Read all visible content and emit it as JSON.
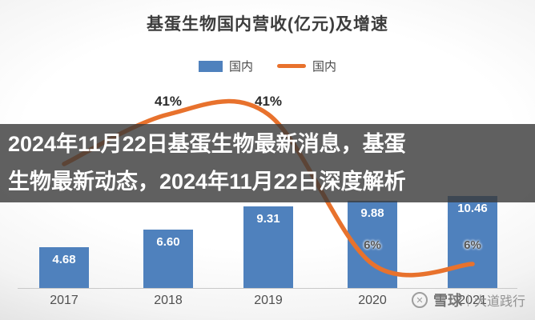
{
  "chart_data": {
    "type": "bar+line",
    "title": "基蛋生物国内营收(亿元)及增速",
    "categories": [
      "2017",
      "2018",
      "2019",
      "2020",
      "2021"
    ],
    "series": [
      {
        "name": "国内",
        "type": "bar",
        "color": "#4F81BD",
        "unit": "亿元",
        "values": [
          4.68,
          6.6,
          9.31,
          9.88,
          10.46
        ]
      },
      {
        "name": "国内",
        "type": "line",
        "color": "#E8722D",
        "unit": "%",
        "values": [
          null,
          41,
          41,
          6,
          6
        ]
      }
    ],
    "value_label_position": "inside-top",
    "growth_labels_visible": [
      "41%",
      "41%",
      "6%",
      "6%"
    ],
    "legend_position": "top",
    "grid": "off"
  },
  "legend": {
    "bar_label": "国内",
    "line_label": "国内"
  },
  "banner": {
    "lines": [
      "2024年11月22日基蛋生物最新消息，基蛋",
      "生物最新动态，2024年11月22日深度解析"
    ],
    "background": "rgba(56,56,56,0.80)",
    "text_color": "#ffffff"
  },
  "watermark": {
    "x_glyph": "✕",
    "brand": "雪球",
    "handle": "大道践行"
  },
  "colors": {
    "bar": "#4F81BD",
    "line": "#E8722D",
    "title": "#3d3d3d"
  }
}
